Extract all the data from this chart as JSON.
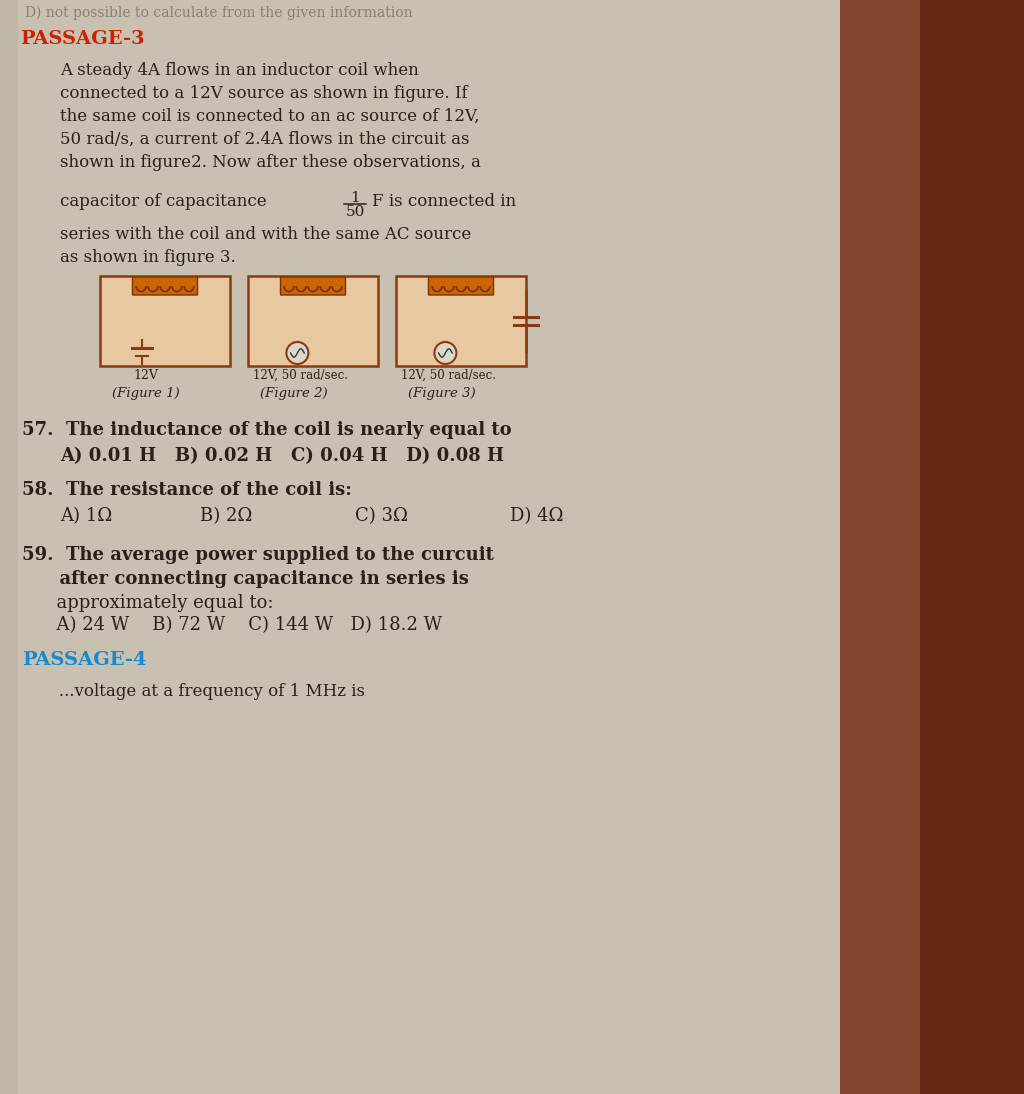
{
  "bg_color_main": "#c8c0b0",
  "bg_color_right": "#8B4020",
  "text_color": "#2a2018",
  "passage_title_color": "#cc2200",
  "passage4_title_color": "#1a88cc",
  "top_text": "D) not possible to calculate from the given information",
  "passage_title": "PASSAGE-3",
  "body_lines": [
    "A steady 4A flows in an inductor coil when",
    "connected to a 12V source as shown in figure. If",
    "the same coil is connected to an ac source of 12V,",
    "50 rad/s, a current of 2.4A flows in the circuit as",
    "shown in figure2. Now after these observations, a"
  ],
  "frac_prefix": "capacitor of capacitance",
  "frac_num": "1",
  "frac_den": "50",
  "frac_suffix": "F is connected in",
  "line_cap": "series with the coil and with the same AC source",
  "line_fig": "as shown in figure 3.",
  "fig1_label": "12V",
  "fig2_label": "12V, 50 rad/sec.",
  "fig3_label": "12V, 50 rad/sec.",
  "fig1_cap": "(Figure 1)",
  "fig2_cap": "(Figure 2)",
  "fig3_cap": "(Figure 3)",
  "q57_text": "57.  The inductance of the coil is nearly equal to",
  "q57_opts": "A) 0.01 H   B) 0.02 H   C) 0.04 H   D) 0.08 H",
  "q58_text": "58.  The resistance of the coil is:",
  "q58_a": "A) 1Ω",
  "q58_b": "B) 2Ω",
  "q58_c": "C) 3Ω",
  "q58_d": "D) 4Ω",
  "q59_line1": "59.  The average power supplied to the curcuit",
  "q59_line2": "      after connecting capacitance in series is",
  "q59_line3": "      approximately equal to:",
  "q59_opts": "      A) 24 W    B) 72 W    C) 144 W   D) 18.2 W",
  "passage4_title": "PASSAGE-4",
  "passage4_bottom": "       ...voltage at a frequency of 1 MHz is",
  "circuit_color": "#8B3A10",
  "inductor_fill": "#cc6600",
  "inductor_edge": "#7a3300",
  "rect_fill": "#e8c8a0"
}
